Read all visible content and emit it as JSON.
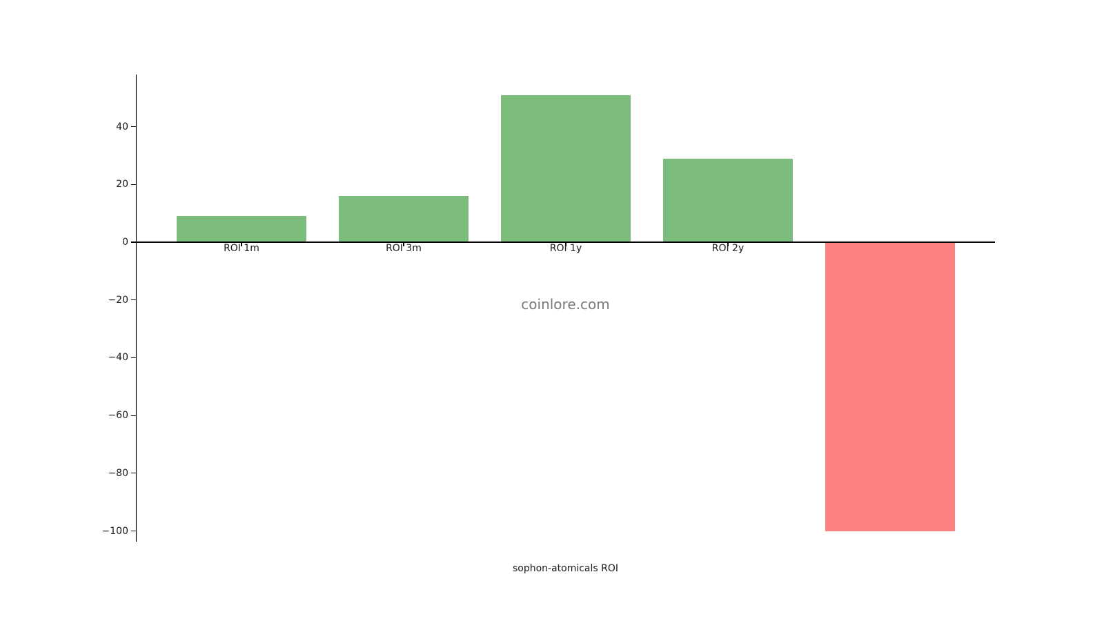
{
  "watermark": {
    "text": "coinlore.com",
    "color": "#7a7a7a"
  },
  "chart_data": {
    "type": "bar",
    "categories": [
      "ROI 1m",
      "ROI 3m",
      "ROI 1y",
      "ROI 2y",
      ""
    ],
    "values": [
      9,
      16,
      51,
      29,
      -100
    ],
    "title": "sophon-atomicals ROI",
    "title_position": "bottom",
    "xlabel": "",
    "ylabel": "",
    "yticks": [
      40,
      20,
      0,
      -20,
      -40,
      -60,
      -80,
      -100
    ],
    "ylim": [
      -103.7,
      58.1
    ],
    "grid": false,
    "legend": null,
    "colors": {
      "positive_bar": "#7cbd7d",
      "negative_bar": "#fc8181",
      "axis": "#000000",
      "text": "#1a1a1a",
      "watermark": "#7a7a7a"
    }
  }
}
